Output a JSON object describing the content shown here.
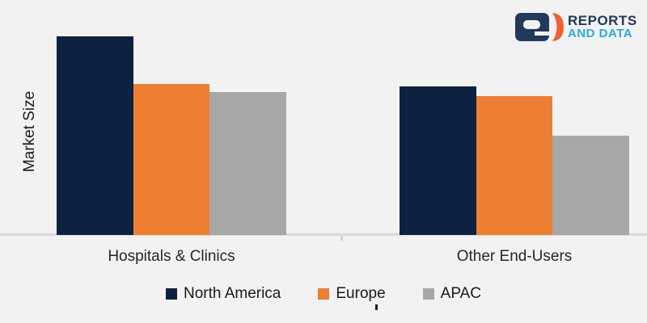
{
  "page": {
    "background": "#f2f2f2"
  },
  "logo": {
    "line1": "REPORTS",
    "line2": "AND DATA",
    "mark_r_color": "#22395c",
    "mark_d_color": "#f15f32",
    "line1_color": "#22395c",
    "line2_color": "#29abe2"
  },
  "axis": {
    "line_color": "#dadada"
  },
  "chart_data": {
    "type": "bar",
    "title": "",
    "xlabel": "",
    "ylabel": "Market Size",
    "categories": [
      "Hospitals & Clinics",
      "Other End-Users"
    ],
    "series": [
      {
        "name": "North America",
        "color": "#0d2240",
        "values": [
          100,
          75
        ]
      },
      {
        "name": "Europe",
        "color": "#ee7e32",
        "values": [
          76,
          70
        ]
      },
      {
        "name": "APAC",
        "color": "#a7a7a7",
        "values": [
          72,
          50
        ]
      }
    ],
    "ylim": [
      0,
      105
    ],
    "y_axis_tick_labels_visible": false,
    "gridlines": false,
    "legend_position": "bottom"
  }
}
